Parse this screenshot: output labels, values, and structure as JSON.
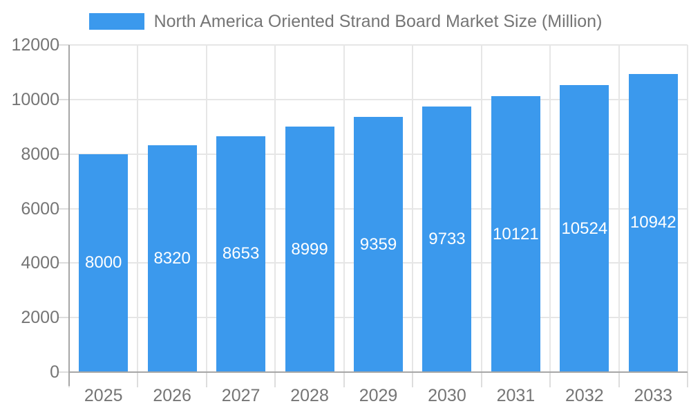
{
  "legend": {
    "label": "North America Oriented Strand Board Market Size (Million)"
  },
  "chart_data": {
    "type": "bar",
    "title": "North America Oriented Strand Board Market Size (Million)",
    "categories": [
      "2025",
      "2026",
      "2027",
      "2028",
      "2029",
      "2030",
      "2031",
      "2032",
      "2033"
    ],
    "values": [
      8000,
      8320,
      8653,
      8999,
      9359,
      9733,
      10121,
      10524,
      10942
    ],
    "bar_labels": [
      "8000",
      "8320",
      "8653",
      "8999",
      "9359",
      "9733",
      "10121",
      "10524",
      "10942"
    ],
    "xlabel": "",
    "ylabel": "",
    "ylim": [
      0,
      12000
    ],
    "yticks": [
      0,
      2000,
      4000,
      6000,
      8000,
      10000,
      12000
    ],
    "grid": true,
    "legend_position": "top",
    "colors": {
      "bar": "#3b99ed",
      "bar_label_text": "#ffffff",
      "axis_text": "#757575",
      "gridline": "#e6e6e6",
      "tick": "#dddddd",
      "axis_line": "#a6a6a6",
      "background": "#ffffff"
    }
  }
}
